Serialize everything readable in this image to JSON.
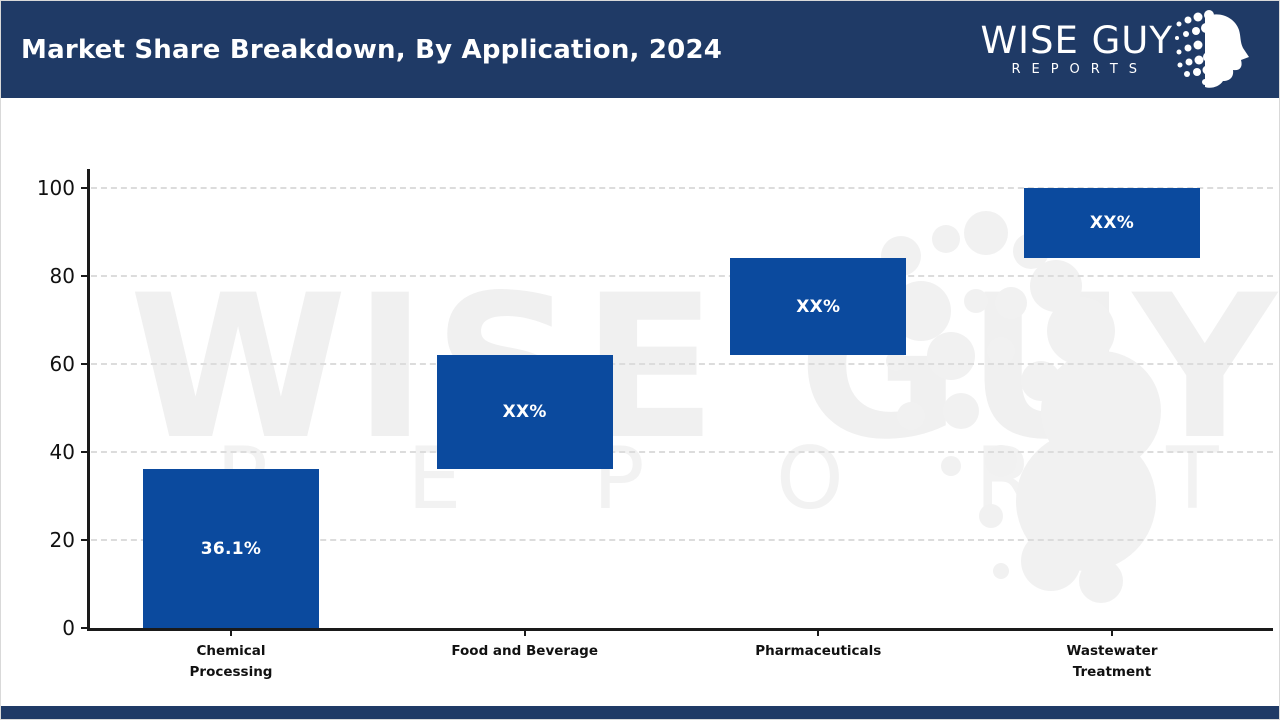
{
  "header": {
    "title": "Market Share Breakdown, By Application, 2024",
    "bg_color": "#1f3a66",
    "logo": {
      "brand_top": "WISE GUY",
      "brand_bottom": "REPORTS"
    }
  },
  "watermark": {
    "line1": "WISE GUY",
    "line2": "R E P O R T S"
  },
  "footer": {
    "bg_color": "#1f3a66"
  },
  "chart_data": {
    "type": "bar",
    "subtype": "floating-waterfall",
    "title": "Market Share Breakdown, By Application, 2024",
    "categories": [
      "Chemical\nProcessing",
      "Food and Beverage",
      "Pharmaceuticals",
      "Wastewater\nTreatment"
    ],
    "series": [
      {
        "name": "Market share (%)",
        "segments": [
          {
            "category": "Chemical Processing",
            "from": 0,
            "to": 36.1,
            "label": "36.1%"
          },
          {
            "category": "Food and Beverage",
            "from": 36.1,
            "to": 62,
            "label": "XX%"
          },
          {
            "category": "Pharmaceuticals",
            "from": 62,
            "to": 84,
            "label": "XX%"
          },
          {
            "category": "Wastewater Treatment",
            "from": 84,
            "to": 100,
            "label": "XX%"
          }
        ]
      }
    ],
    "ylim": [
      0,
      100
    ],
    "yticks": [
      0,
      20,
      40,
      60,
      80,
      100
    ],
    "xlabel": "",
    "ylabel": "",
    "grid": "horizontal-dashed",
    "legend": "none",
    "bar_color": "#0b4a9e",
    "bar_label_color": "#ffffff",
    "axis_color": "#1a1a1a",
    "gridline_color": "#dcdcdc"
  }
}
